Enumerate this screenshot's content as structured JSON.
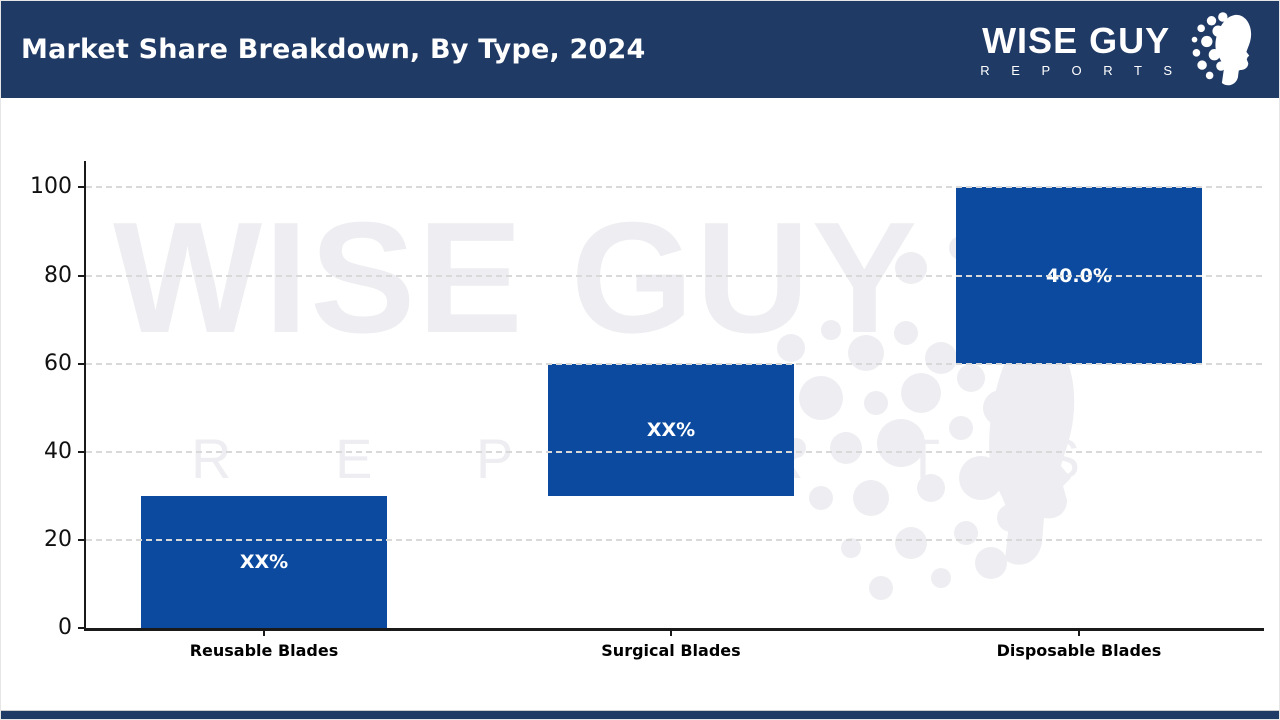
{
  "header": {
    "title": "Market Share Breakdown, By Type, 2024",
    "background": "#203a66",
    "logo": {
      "line1": "WISE GUY",
      "line2": "R E P O R T S"
    }
  },
  "watermark": {
    "line1": "WISE GUY",
    "line2": "R E P O R T S"
  },
  "chart_data": {
    "type": "bar",
    "subtype": "waterfall",
    "title": "Market Share Breakdown, By Type, 2024",
    "categories": [
      "Reusable Blades",
      "Surgical Blades",
      "Disposable Blades"
    ],
    "segments": [
      {
        "category": "Reusable Blades",
        "start": 0,
        "end": 30,
        "label": "XX%"
      },
      {
        "category": "Surgical Blades",
        "start": 30,
        "end": 60,
        "label": "XX%"
      },
      {
        "category": "Disposable Blades",
        "start": 60,
        "end": 100,
        "label": "40.0%"
      }
    ],
    "values": [
      30,
      30,
      40
    ],
    "unit": "%",
    "yticks": [
      0,
      20,
      40,
      60,
      80,
      100
    ],
    "ylim": [
      0,
      106
    ],
    "grid": "horizontal-dashed",
    "legend": "none",
    "bar_color": "#0b4a9e",
    "bar_label_color": "#ffffff",
    "gridline_color": "#d9d9d9",
    "axis_color": "#1a1a1a"
  },
  "footer": {
    "background": "#203a66"
  }
}
